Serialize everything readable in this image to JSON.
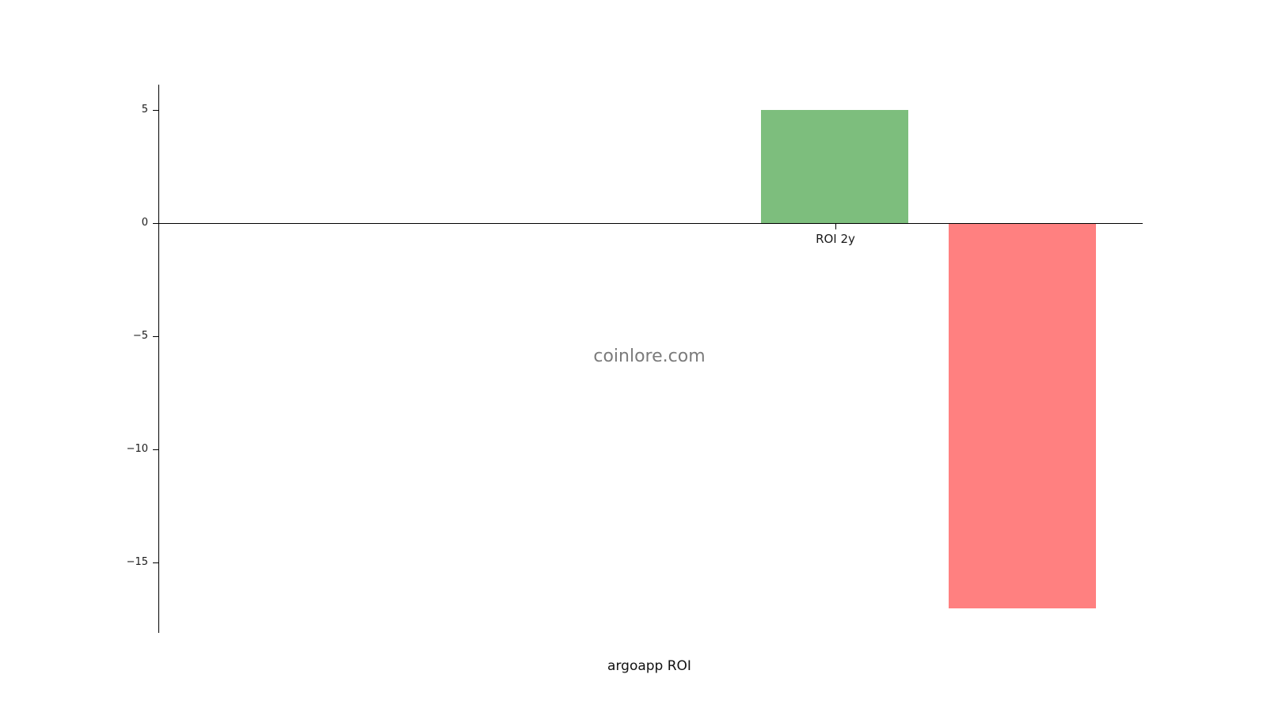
{
  "page": {
    "background": "#ffffff"
  },
  "chart_data": {
    "type": "bar",
    "title": "argoapp ROI",
    "watermark": "coinlore.com",
    "xlabel": "",
    "ylabel": "",
    "grid": false,
    "legend": false,
    "ylim": [
      -18.1,
      6.1
    ],
    "categories": [
      "ROI 2y",
      ""
    ],
    "bars": [
      {
        "category": "ROI 2y",
        "value": 5,
        "color": "#7dbe7d",
        "name": "positive-roi-bar"
      },
      {
        "category": "",
        "value": -17,
        "color": "#ff8080",
        "name": "negative-roi-bar"
      }
    ],
    "yticks": [
      {
        "value": 5,
        "label": "5"
      },
      {
        "value": 0,
        "label": "0"
      },
      {
        "value": -5,
        "label": "−5"
      },
      {
        "value": -10,
        "label": "−10"
      },
      {
        "value": -15,
        "label": "−15"
      }
    ],
    "colors": {
      "positive": "#7dbe7d",
      "negative": "#ff8080",
      "axis": "#000000",
      "tick_text": "#1a1a1a",
      "watermark": "#7b7b7b",
      "title_text": "#111111"
    }
  }
}
